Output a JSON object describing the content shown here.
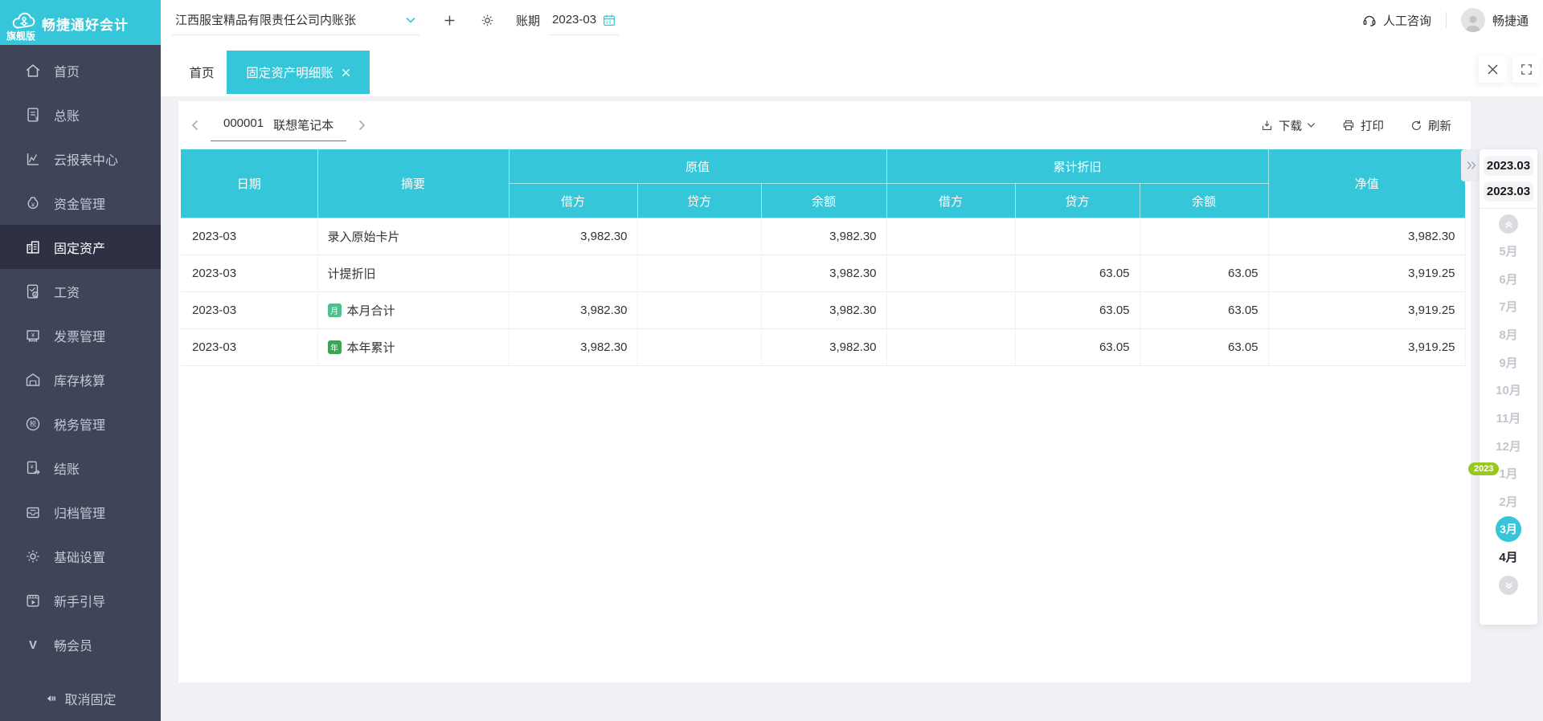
{
  "app": {
    "title": "畅捷通好会计",
    "edition": "旗舰版"
  },
  "colors": {
    "accent": "#35C6D9",
    "sidebar_bg": "#3F4458",
    "sidebar_active_bg": "#2D3143",
    "table_header": "#35C6D9",
    "year_badge_green": "#98C71F",
    "month_muted": "#C4C6CD"
  },
  "topbar": {
    "company": "江西服宝精品有限责任公司内账张",
    "period_label": "账期",
    "period_value": "2023-03",
    "support_label": "人工咨询",
    "username": "畅捷通"
  },
  "tabbar": {
    "tabs": [
      {
        "label": "首页",
        "active": false
      },
      {
        "label": "固定资产明细账",
        "active": true
      }
    ]
  },
  "sidebar": {
    "items": [
      {
        "label": "首页",
        "icon": "home-icon",
        "active": false
      },
      {
        "label": "总账",
        "icon": "ledger-icon",
        "active": false
      },
      {
        "label": "云报表中心",
        "icon": "report-chart-icon",
        "active": false
      },
      {
        "label": "资金管理",
        "icon": "money-bag-icon",
        "active": false
      },
      {
        "label": "固定资产",
        "icon": "fixed-assets-icon",
        "active": true
      },
      {
        "label": "工资",
        "icon": "salary-icon",
        "active": false
      },
      {
        "label": "发票管理",
        "icon": "invoice-icon",
        "active": false
      },
      {
        "label": "库存核算",
        "icon": "inventory-icon",
        "active": false
      },
      {
        "label": "税务管理",
        "icon": "tax-icon",
        "active": false
      },
      {
        "label": "结账",
        "icon": "closing-icon",
        "active": false
      },
      {
        "label": "归档管理",
        "icon": "archive-icon",
        "active": false
      },
      {
        "label": "基础设置",
        "icon": "settings-icon",
        "active": false
      },
      {
        "label": "新手引导",
        "icon": "guide-icon",
        "active": false
      },
      {
        "label": "畅会员",
        "icon": "member-icon",
        "active": false
      }
    ],
    "unpin_label": "取消固定"
  },
  "toolbar": {
    "asset_code": "000001",
    "asset_name": "联想笔记本",
    "download_label": "下载",
    "print_label": "打印",
    "refresh_label": "刷新"
  },
  "table": {
    "columns": {
      "date": "日期",
      "summary": "摘要",
      "original_value": "原值",
      "accumulated_depreciation": "累计折旧",
      "net_value": "净值",
      "debit": "借方",
      "credit": "贷方",
      "balance": "余额"
    },
    "rows": [
      {
        "date": "2023-03",
        "summary": "录入原始卡片",
        "icon": null,
        "icon_label": "",
        "ov_debit": "3,982.30",
        "ov_credit": "",
        "ov_balance": "3,982.30",
        "ad_debit": "",
        "ad_credit": "",
        "ad_balance": "",
        "net": "3,982.30"
      },
      {
        "date": "2023-03",
        "summary": "计提折旧",
        "icon": null,
        "icon_label": "",
        "ov_debit": "",
        "ov_credit": "",
        "ov_balance": "3,982.30",
        "ad_debit": "",
        "ad_credit": "63.05",
        "ad_balance": "63.05",
        "net": "3,919.25"
      },
      {
        "date": "2023-03",
        "summary": "本月合计",
        "icon": "month-total-icon",
        "icon_label": "月",
        "ov_debit": "3,982.30",
        "ov_credit": "",
        "ov_balance": "3,982.30",
        "ad_debit": "",
        "ad_credit": "63.05",
        "ad_balance": "63.05",
        "net": "3,919.25"
      },
      {
        "date": "2023-03",
        "summary": "本年累计",
        "icon": "year-total-icon",
        "icon_label": "年",
        "ov_debit": "3,982.30",
        "ov_credit": "",
        "ov_balance": "3,982.30",
        "ad_debit": "",
        "ad_credit": "63.05",
        "ad_balance": "63.05",
        "net": "3,919.25"
      }
    ]
  },
  "month_panel": {
    "period_chips": [
      "2023.03",
      "2023.03"
    ],
    "year_badge": "2023",
    "months": [
      {
        "label": "5月",
        "state": "muted"
      },
      {
        "label": "6月",
        "state": "muted"
      },
      {
        "label": "7月",
        "state": "muted"
      },
      {
        "label": "8月",
        "state": "muted"
      },
      {
        "label": "9月",
        "state": "muted"
      },
      {
        "label": "10月",
        "state": "muted"
      },
      {
        "label": "11月",
        "state": "muted"
      },
      {
        "label": "12月",
        "state": "muted"
      },
      {
        "label": "1月",
        "state": "muted"
      },
      {
        "label": "2月",
        "state": "muted"
      },
      {
        "label": "3月",
        "state": "active"
      },
      {
        "label": "4月",
        "state": "current"
      }
    ]
  }
}
